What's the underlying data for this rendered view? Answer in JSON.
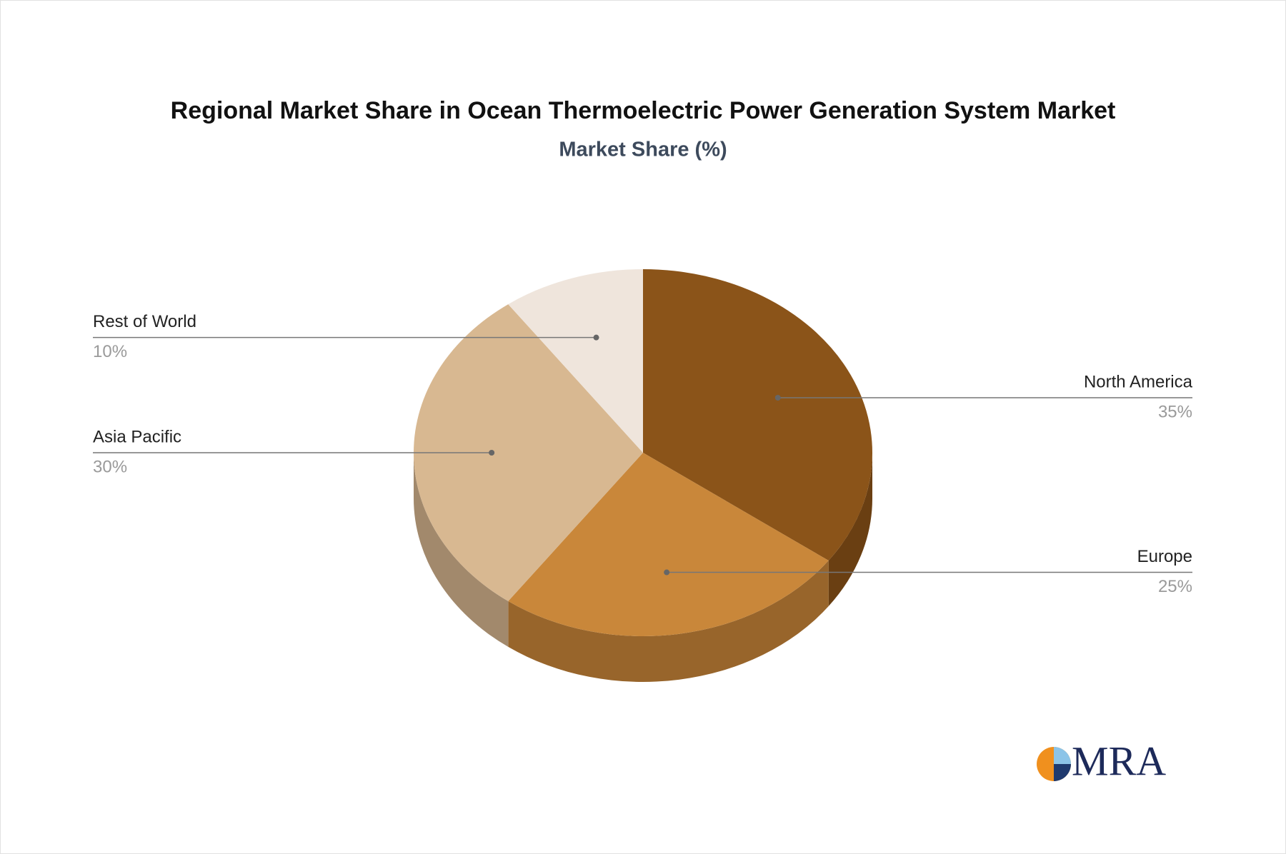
{
  "chart_data": {
    "type": "pie",
    "title": "Regional Market Share in Ocean Thermoelectric Power Generation System Market",
    "subtitle": "Market Share (%)",
    "categories": [
      "North America",
      "Europe",
      "Asia Pacific",
      "Rest of World"
    ],
    "values": [
      35,
      25,
      30,
      10
    ],
    "value_labels": [
      "35%",
      "25%",
      "30%",
      "10%"
    ],
    "colors": [
      "#8b5419",
      "#c9873a",
      "#d8b891",
      "#efe5dc"
    ],
    "side_colors": [
      "#6a3f12",
      "#98652b",
      "#a2896c",
      "#b3aba4"
    ]
  },
  "logo": "MRA"
}
